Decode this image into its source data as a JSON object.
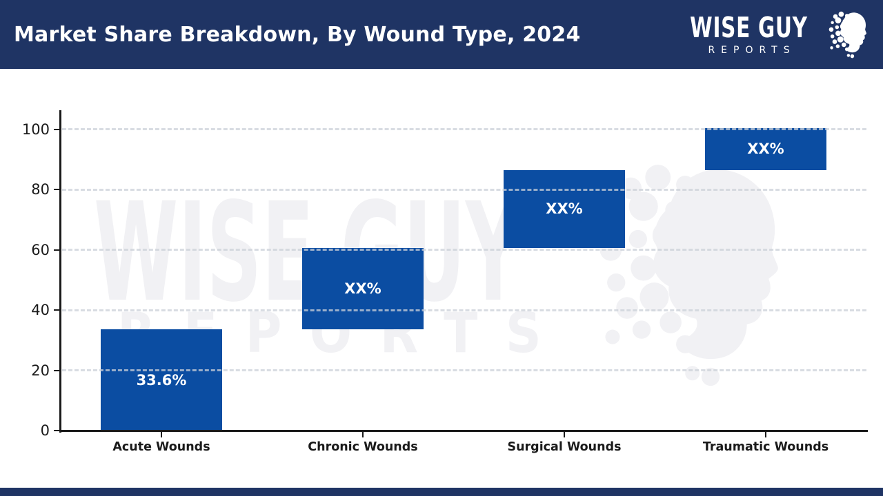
{
  "header": {
    "title": "Market Share Breakdown, By Wound Type, 2024",
    "logo": {
      "name_top": "WISE GUY",
      "name_bottom": "REPORTS"
    }
  },
  "watermark": {
    "line1": "WISE GUY",
    "line2": "REPORTS"
  },
  "chart_data": {
    "type": "bar",
    "subtype": "floating-segment-waterfall",
    "title": "Market Share Breakdown, By Wound Type, 2024",
    "categories": [
      "Acute Wounds",
      "Chronic Wounds",
      "Surgical Wounds",
      "Traumatic Wounds"
    ],
    "segments": [
      {
        "category": "Acute Wounds",
        "start": 0,
        "end": 33.6,
        "label": "33.6%"
      },
      {
        "category": "Chronic Wounds",
        "start": 33.6,
        "end": 60.6,
        "label": "XX%"
      },
      {
        "category": "Surgical Wounds",
        "start": 60.6,
        "end": 86.4,
        "label": "XX%"
      },
      {
        "category": "Traumatic Wounds",
        "start": 86.4,
        "end": 100.4,
        "label": "XX%"
      }
    ],
    "bar_labels": [
      "33.6%",
      "XX%",
      "XX%",
      "XX%"
    ],
    "yticks": [
      0,
      20,
      40,
      60,
      80,
      100
    ],
    "ylim": [
      0,
      106
    ],
    "xlabel": "",
    "ylabel": "",
    "grid": "horizontal dashed gridlines drawn over bars",
    "legend": "none",
    "colors": {
      "bar": "#0b4da2",
      "bar_label": "#ffffff",
      "axis": "#1a1a1a",
      "grid": "rgba(203,208,216,0.75)",
      "header_bg": "#1f3464",
      "header_text": "#ffffff",
      "watermark": "#f1f1f4",
      "background": "#ffffff"
    }
  }
}
